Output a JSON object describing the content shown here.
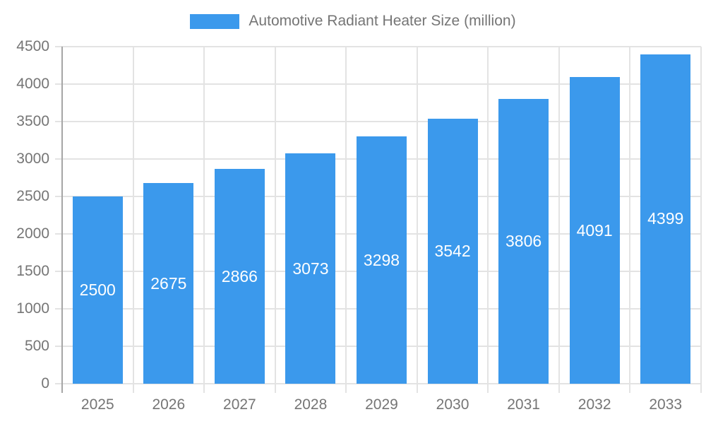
{
  "chart_data": {
    "type": "bar",
    "title": "Automotive Radiant Heater Size (million)",
    "legend": {
      "position": "top",
      "label": "Automotive Radiant Heater Size (million)"
    },
    "categories": [
      "2025",
      "2026",
      "2027",
      "2028",
      "2029",
      "2030",
      "2031",
      "2032",
      "2033"
    ],
    "series": [
      {
        "name": "Automotive Radiant Heater Size (million)",
        "color": "#3B99EC",
        "values": [
          2500,
          2675,
          2866,
          3073,
          3298,
          3542,
          3806,
          4091,
          4399
        ]
      }
    ],
    "xlabel": "",
    "ylabel": "",
    "ylim": [
      0,
      4500
    ],
    "yticks": [
      0,
      500,
      1000,
      1500,
      2000,
      2500,
      3000,
      3500,
      4000,
      4500
    ],
    "grid": true,
    "value_labels": {
      "position": "inside-center",
      "color": "#FFFFFF"
    },
    "colors": {
      "axis_text": "#757575",
      "grid_line": "#E3E3E3",
      "axis_line": "#A6A6A6",
      "background": "#FFFFFF"
    }
  }
}
